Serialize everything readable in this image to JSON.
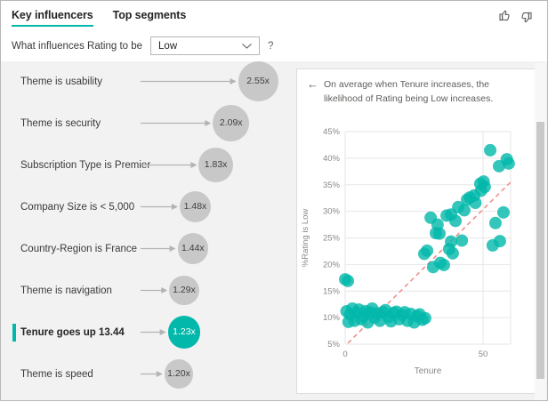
{
  "header": {
    "tabs": [
      {
        "label": "Key influencers",
        "selected": true
      },
      {
        "label": "Top segments",
        "selected": false
      }
    ],
    "question": {
      "prefix": "What influences Rating to be",
      "selected_value": "Low",
      "help_label": "?"
    }
  },
  "influencers": [
    {
      "label": "Theme is usability",
      "value": "2.55x",
      "strength": 2.55,
      "selected": false
    },
    {
      "label": "Theme is security",
      "value": "2.09x",
      "strength": 2.09,
      "selected": false
    },
    {
      "label": "Subscription Type is Premier",
      "value": "1.83x",
      "strength": 1.83,
      "selected": false
    },
    {
      "label": "Company Size is < 5,000",
      "value": "1.48x",
      "strength": 1.48,
      "selected": false
    },
    {
      "label": "Country-Region is France",
      "value": "1.44x",
      "strength": 1.44,
      "selected": false
    },
    {
      "label": "Theme is navigation",
      "value": "1.29x",
      "strength": 1.29,
      "selected": false
    },
    {
      "label": "Tenure goes up 13.44",
      "value": "1.23x",
      "strength": 1.23,
      "selected": true
    },
    {
      "label": "Theme is speed",
      "value": "1.20x",
      "strength": 1.2,
      "selected": false
    }
  ],
  "detail": {
    "back_icon": "←",
    "description": "On average when Tenure increases, the likelihood of Rating being Low increases."
  },
  "chart_data": {
    "type": "scatter",
    "title": "On average when Tenure increases, the likelihood of Rating being Low increases.",
    "xlabel": "Tenure",
    "ylabel": "%Rating is Low",
    "xlim": [
      0,
      60
    ],
    "ylim": [
      5,
      45
    ],
    "x_ticks": [
      0,
      50
    ],
    "y_ticks": [
      "45%",
      "40%",
      "35%",
      "30%",
      "25%",
      "20%",
      "15%",
      "10%",
      "5%"
    ],
    "grid": true,
    "legend": "none",
    "point_color": "#01B8AA",
    "trend_line": {
      "style": "dashed",
      "color": "#F0908D",
      "from": [
        1,
        5.2
      ],
      "to": [
        60,
        35.5
      ]
    },
    "points": [
      [
        0,
        17.2
      ],
      [
        1,
        16.9
      ],
      [
        0.5,
        11.2
      ],
      [
        1.2,
        9.2
      ],
      [
        1.8,
        10.6
      ],
      [
        2.6,
        11.7
      ],
      [
        3.4,
        9.4
      ],
      [
        4.2,
        10.9
      ],
      [
        5,
        11.5
      ],
      [
        5.8,
        9.7
      ],
      [
        6.6,
        10.3
      ],
      [
        7.4,
        11.2
      ],
      [
        8.2,
        9.1
      ],
      [
        9,
        11
      ],
      [
        9.8,
        11.7
      ],
      [
        10.6,
        10
      ],
      [
        11.6,
        10.8
      ],
      [
        12.6,
        9.4
      ],
      [
        13.6,
        11
      ],
      [
        14.6,
        11.4
      ],
      [
        15.6,
        10.1
      ],
      [
        16.6,
        9.3
      ],
      [
        17.6,
        10.9
      ],
      [
        18.6,
        11.1
      ],
      [
        19.6,
        9.7
      ],
      [
        20.6,
        10.5
      ],
      [
        21.6,
        11
      ],
      [
        22.6,
        9.4
      ],
      [
        23.8,
        10.7
      ],
      [
        25,
        9.1
      ],
      [
        26,
        10.3
      ],
      [
        27,
        10.6
      ],
      [
        28,
        9.6
      ],
      [
        29,
        9.9
      ],
      [
        28.7,
        22
      ],
      [
        29.7,
        22.6
      ],
      [
        31.9,
        19.5
      ],
      [
        34.5,
        20.3
      ],
      [
        35.8,
        19.9
      ],
      [
        31,
        28.8
      ],
      [
        33.5,
        27.5
      ],
      [
        32.9,
        25.9
      ],
      [
        34.2,
        25.8
      ],
      [
        36.8,
        29.2
      ],
      [
        37.7,
        22.9
      ],
      [
        38.4,
        24.3
      ],
      [
        39,
        22.1
      ],
      [
        42.3,
        24.5
      ],
      [
        38.4,
        29.4
      ],
      [
        40,
        28.2
      ],
      [
        41,
        30.8
      ],
      [
        43.2,
        30.2
      ],
      [
        44.2,
        32.2
      ],
      [
        45.2,
        32.6
      ],
      [
        46.8,
        33
      ],
      [
        47.2,
        31.6
      ],
      [
        49,
        35.2
      ],
      [
        49.3,
        33.9
      ],
      [
        50.2,
        35.6
      ],
      [
        50.6,
        34.6
      ],
      [
        52.6,
        41.5
      ],
      [
        53.5,
        23.6
      ],
      [
        54.5,
        27.8
      ],
      [
        55.8,
        38.5
      ],
      [
        56.1,
        24.4
      ],
      [
        57.4,
        29.8
      ],
      [
        58.6,
        39.8
      ],
      [
        59.3,
        39
      ]
    ]
  },
  "colors": {
    "accent": "#01B8AA",
    "bubble_gray": "#C8C8C8",
    "panel_bg": "#F2F2F2",
    "arrow_gray": "#B3B3B3",
    "trend": "#F0908D",
    "axis_text": "#8A8886",
    "gridline": "#E6E6E6"
  }
}
